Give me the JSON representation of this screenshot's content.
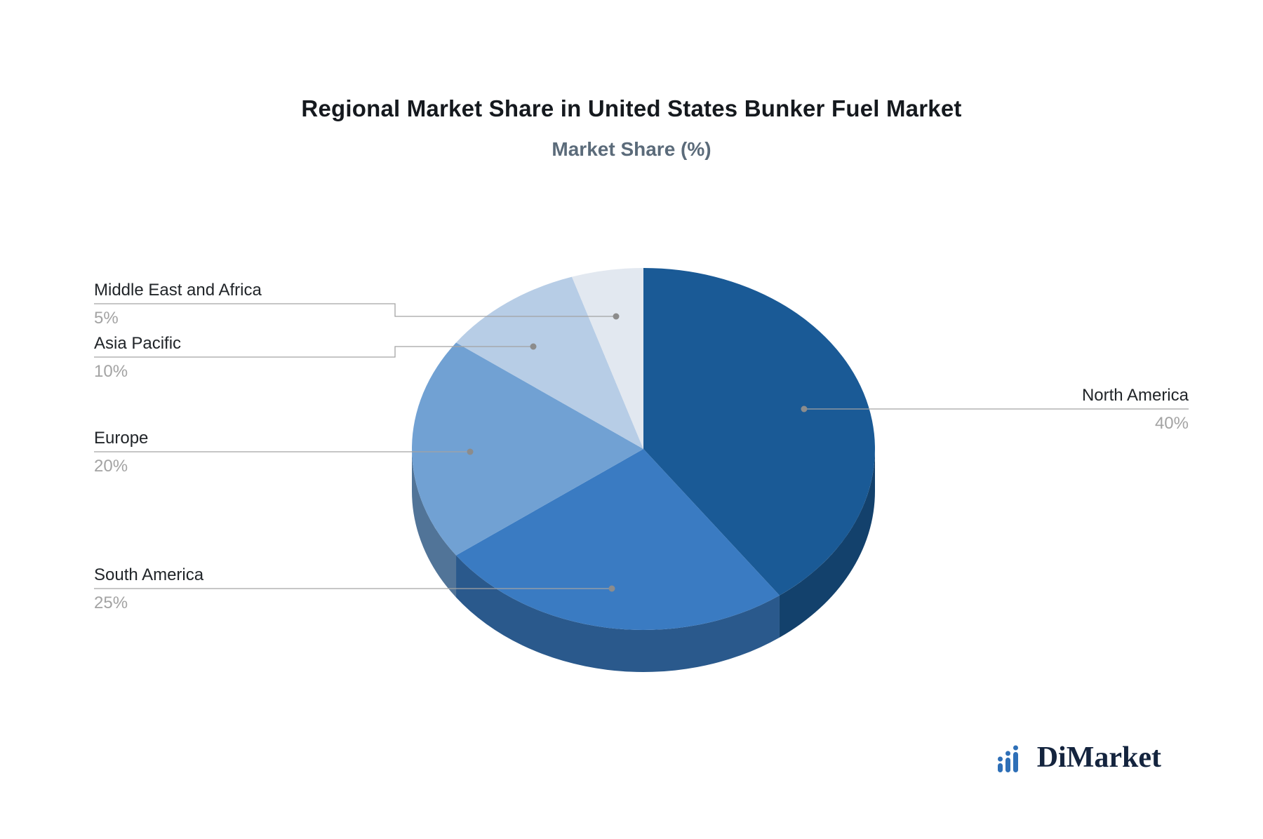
{
  "chart_data": {
    "type": "pie",
    "style": "3d",
    "title": "Regional Market Share in United States Bunker Fuel Market",
    "subtitle": "Market Share (%)",
    "unit": "%",
    "categories": [
      "North America",
      "South America",
      "Europe",
      "Asia Pacific",
      "Middle East and Africa"
    ],
    "values": [
      40,
      25,
      20,
      10,
      5
    ],
    "value_labels": [
      "40%",
      "25%",
      "20%",
      "10%",
      "5%"
    ],
    "colors": [
      "#1a5a96",
      "#3a7bc2",
      "#71a1d3",
      "#b7cde6",
      "#e2e8f0"
    ],
    "start_angle_deg": 0,
    "direction": "clockwise",
    "legend_position": "none",
    "label_style": "outside-leader-lines"
  },
  "branding": {
    "logo_text": "DiMarket",
    "logo_icon": "bar-chart-icon",
    "logo_color": "#2e6fb7",
    "text_color": "#14243e"
  }
}
